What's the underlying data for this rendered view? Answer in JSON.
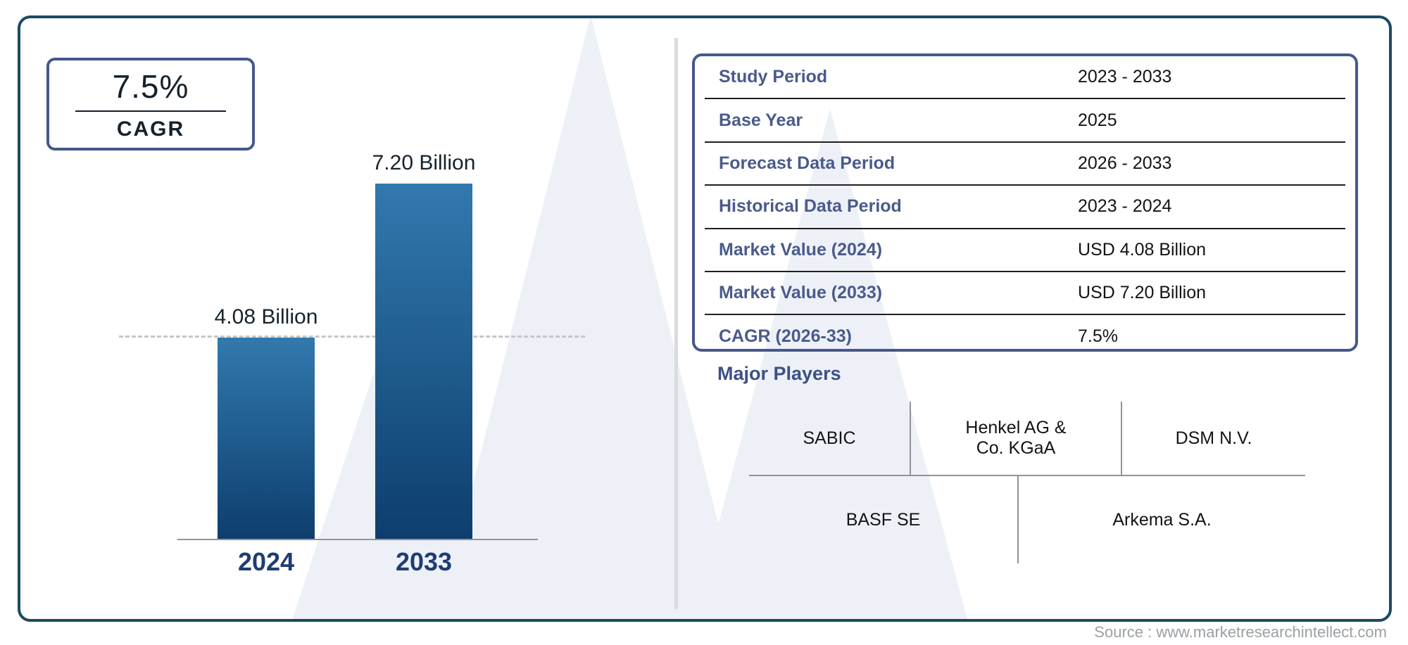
{
  "cagr_box": {
    "value": "7.5%",
    "label": "CAGR"
  },
  "chart_data": {
    "type": "bar",
    "categories": [
      "2024",
      "2033"
    ],
    "values": [
      4.08,
      7.2
    ],
    "value_labels": [
      "4.08 Billion",
      "7.20 Billion"
    ],
    "unit": "USD Billion",
    "title": "",
    "xlabel": "",
    "ylabel": "",
    "ylim": [
      0,
      7.2
    ],
    "reference_line_at": 4.08,
    "grid": false,
    "legend": "none",
    "bar_color_top": "#3279ae",
    "bar_color_bottom": "#0d3e6e"
  },
  "info_table": {
    "rows": [
      {
        "label": "Study Period",
        "value": "2023 - 2033"
      },
      {
        "label": "Base Year",
        "value": "2025"
      },
      {
        "label": "Forecast Data Period",
        "value": "2026 - 2033"
      },
      {
        "label": "Historical Data Period",
        "value": "2023 - 2024"
      },
      {
        "label": "Market Value (2024)",
        "value": "USD 4.08 Billion"
      },
      {
        "label": "Market Value (2033)",
        "value": "USD 7.20 Billion"
      },
      {
        "label": "CAGR (2026-33)",
        "value": "7.5%"
      }
    ]
  },
  "major_players": {
    "title": "Major Players",
    "row1": [
      "SABIC",
      "Henkel AG &\nCo. KGaA",
      "DSM N.V."
    ],
    "row2": [
      "BASF SE",
      "Arkema S.A."
    ]
  },
  "source": {
    "text": "Source : www.marketresearchintellect.com"
  },
  "colors": {
    "frame_border": "#1b4a63",
    "card_border": "#46588c",
    "label_slate": "#4a5a8c",
    "year_navy": "#1f3d73",
    "watermark": "#edf1f7",
    "divider_gray": "#d9dcde"
  }
}
